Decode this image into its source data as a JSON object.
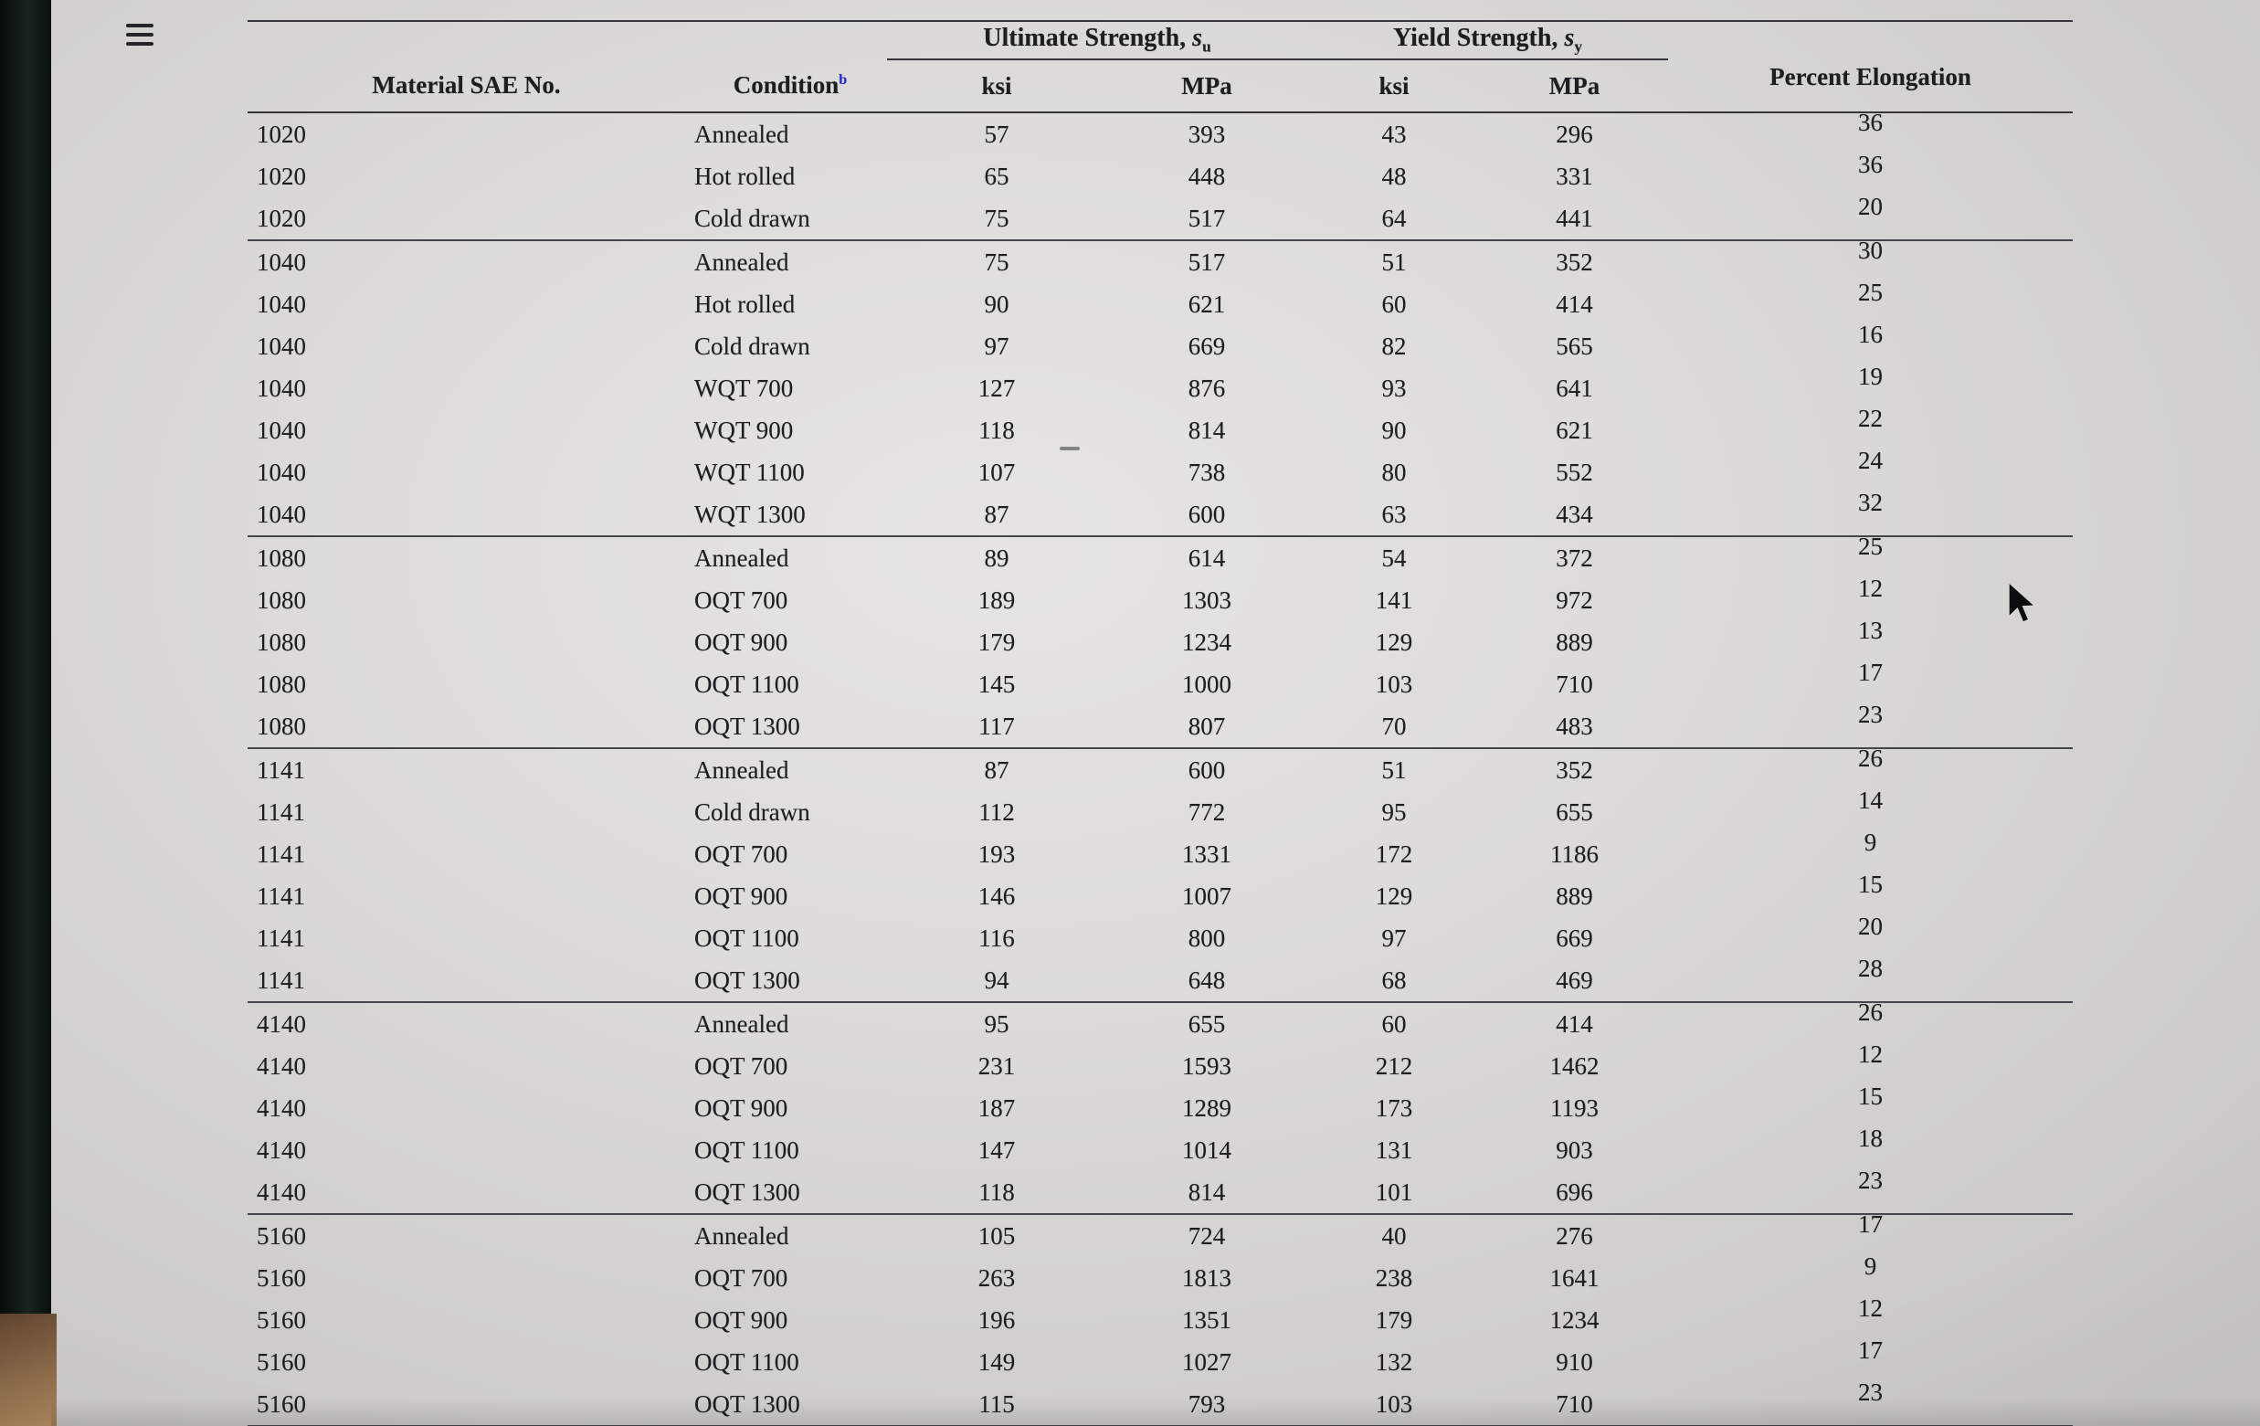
{
  "ui": {
    "icons": {
      "menu": "hamburger",
      "pointer": "arrow-cursor"
    }
  },
  "table": {
    "header": {
      "material": "Material SAE No.",
      "condition": "Condition",
      "condition_sup": "b",
      "ultimate_label": "Ultimate Strength, ",
      "ultimate_sym": "s",
      "ultimate_sub": "u",
      "yield_label": "Yield Strength, ",
      "yield_sym": "s",
      "yield_sub": "y",
      "ksi": "ksi",
      "mpa": "MPa",
      "elongation": "Percent Elongation"
    },
    "groups": [
      {
        "material": "1020",
        "rows": [
          {
            "condition": "Annealed",
            "us_ksi": "57",
            "us_mpa": "393",
            "ys_ksi": "43",
            "ys_mpa": "296",
            "elong": "36"
          },
          {
            "condition": "Hot rolled",
            "us_ksi": "65",
            "us_mpa": "448",
            "ys_ksi": "48",
            "ys_mpa": "331",
            "elong": "36"
          },
          {
            "condition": "Cold drawn",
            "us_ksi": "75",
            "us_mpa": "517",
            "ys_ksi": "64",
            "ys_mpa": "441",
            "elong": "20"
          }
        ]
      },
      {
        "material": "1040",
        "rows": [
          {
            "condition": "Annealed",
            "us_ksi": "75",
            "us_mpa": "517",
            "ys_ksi": "51",
            "ys_mpa": "352",
            "elong": "30"
          },
          {
            "condition": "Hot rolled",
            "us_ksi": "90",
            "us_mpa": "621",
            "ys_ksi": "60",
            "ys_mpa": "414",
            "elong": "25"
          },
          {
            "condition": "Cold drawn",
            "us_ksi": "97",
            "us_mpa": "669",
            "ys_ksi": "82",
            "ys_mpa": "565",
            "elong": "16"
          },
          {
            "condition": "WQT 700",
            "us_ksi": "127",
            "us_mpa": "876",
            "ys_ksi": "93",
            "ys_mpa": "641",
            "elong": "19"
          },
          {
            "condition": "WQT 900",
            "us_ksi": "118",
            "us_mpa": "814",
            "ys_ksi": "90",
            "ys_mpa": "621",
            "elong": "22"
          },
          {
            "condition": "WQT 1100",
            "us_ksi": "107",
            "us_mpa": "738",
            "ys_ksi": "80",
            "ys_mpa": "552",
            "elong": "24"
          },
          {
            "condition": "WQT 1300",
            "us_ksi": "87",
            "us_mpa": "600",
            "ys_ksi": "63",
            "ys_mpa": "434",
            "elong": "32"
          }
        ]
      },
      {
        "material": "1080",
        "rows": [
          {
            "condition": "Annealed",
            "us_ksi": "89",
            "us_mpa": "614",
            "ys_ksi": "54",
            "ys_mpa": "372",
            "elong": "25"
          },
          {
            "condition": "OQT 700",
            "us_ksi": "189",
            "us_mpa": "1303",
            "ys_ksi": "141",
            "ys_mpa": "972",
            "elong": "12"
          },
          {
            "condition": "OQT 900",
            "us_ksi": "179",
            "us_mpa": "1234",
            "ys_ksi": "129",
            "ys_mpa": "889",
            "elong": "13"
          },
          {
            "condition": "OQT 1100",
            "us_ksi": "145",
            "us_mpa": "1000",
            "ys_ksi": "103",
            "ys_mpa": "710",
            "elong": "17"
          },
          {
            "condition": "OQT 1300",
            "us_ksi": "117",
            "us_mpa": "807",
            "ys_ksi": "70",
            "ys_mpa": "483",
            "elong": "23"
          }
        ]
      },
      {
        "material": "1141",
        "rows": [
          {
            "condition": "Annealed",
            "us_ksi": "87",
            "us_mpa": "600",
            "ys_ksi": "51",
            "ys_mpa": "352",
            "elong": "26"
          },
          {
            "condition": "Cold drawn",
            "us_ksi": "112",
            "us_mpa": "772",
            "ys_ksi": "95",
            "ys_mpa": "655",
            "elong": "14"
          },
          {
            "condition": "OQT 700",
            "us_ksi": "193",
            "us_mpa": "1331",
            "ys_ksi": "172",
            "ys_mpa": "1186",
            "elong": "9"
          },
          {
            "condition": "OQT 900",
            "us_ksi": "146",
            "us_mpa": "1007",
            "ys_ksi": "129",
            "ys_mpa": "889",
            "elong": "15"
          },
          {
            "condition": "OQT 1100",
            "us_ksi": "116",
            "us_mpa": "800",
            "ys_ksi": "97",
            "ys_mpa": "669",
            "elong": "20"
          },
          {
            "condition": "OQT 1300",
            "us_ksi": "94",
            "us_mpa": "648",
            "ys_ksi": "68",
            "ys_mpa": "469",
            "elong": "28"
          }
        ]
      },
      {
        "material": "4140",
        "rows": [
          {
            "condition": "Annealed",
            "us_ksi": "95",
            "us_mpa": "655",
            "ys_ksi": "60",
            "ys_mpa": "414",
            "elong": "26"
          },
          {
            "condition": "OQT 700",
            "us_ksi": "231",
            "us_mpa": "1593",
            "ys_ksi": "212",
            "ys_mpa": "1462",
            "elong": "12"
          },
          {
            "condition": "OQT 900",
            "us_ksi": "187",
            "us_mpa": "1289",
            "ys_ksi": "173",
            "ys_mpa": "1193",
            "elong": "15"
          },
          {
            "condition": "OQT 1100",
            "us_ksi": "147",
            "us_mpa": "1014",
            "ys_ksi": "131",
            "ys_mpa": "903",
            "elong": "18"
          },
          {
            "condition": "OQT 1300",
            "us_ksi": "118",
            "us_mpa": "814",
            "ys_ksi": "101",
            "ys_mpa": "696",
            "elong": "23"
          }
        ]
      },
      {
        "material": "5160",
        "rows": [
          {
            "condition": "Annealed",
            "us_ksi": "105",
            "us_mpa": "724",
            "ys_ksi": "40",
            "ys_mpa": "276",
            "elong": "17"
          },
          {
            "condition": "OQT 700",
            "us_ksi": "263",
            "us_mpa": "1813",
            "ys_ksi": "238",
            "ys_mpa": "1641",
            "elong": "9"
          },
          {
            "condition": "OQT 900",
            "us_ksi": "196",
            "us_mpa": "1351",
            "ys_ksi": "179",
            "ys_mpa": "1234",
            "elong": "12"
          },
          {
            "condition": "OQT 1100",
            "us_ksi": "149",
            "us_mpa": "1027",
            "ys_ksi": "132",
            "ys_mpa": "910",
            "elong": "17"
          },
          {
            "condition": "OQT 1300",
            "us_ksi": "115",
            "us_mpa": "793",
            "ys_ksi": "103",
            "ys_mpa": "710",
            "elong": "23"
          }
        ]
      }
    ]
  }
}
